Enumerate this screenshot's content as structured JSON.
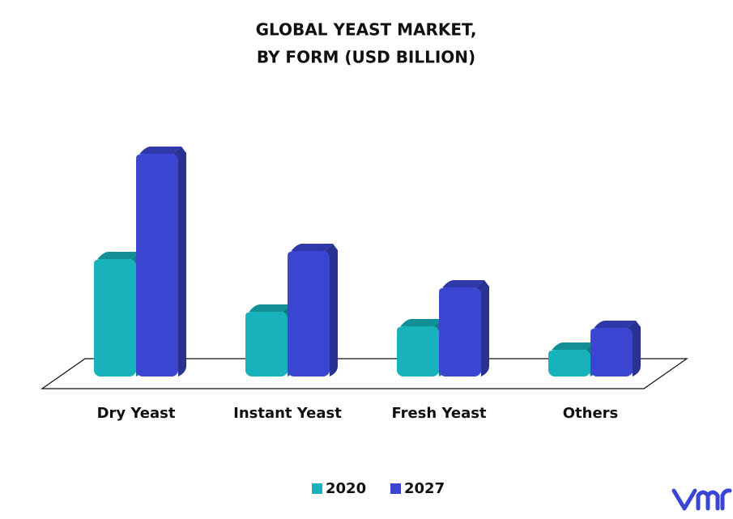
{
  "chart_data": {
    "type": "bar3d",
    "title": [
      "GLOBAL YEAST MARKET,",
      "BY FORM (USD BILLION)"
    ],
    "categories": [
      "Dry Yeast",
      "Instant Yeast",
      "Fresh Yeast",
      "Others"
    ],
    "series": [
      {
        "name": "2020",
        "color": "#17b2bc",
        "values": [
          1.45,
          0.8,
          0.62,
          0.33
        ]
      },
      {
        "name": "2027",
        "color": "#3a46d2",
        "values": [
          2.75,
          1.55,
          1.1,
          0.6
        ]
      }
    ]
  }
}
